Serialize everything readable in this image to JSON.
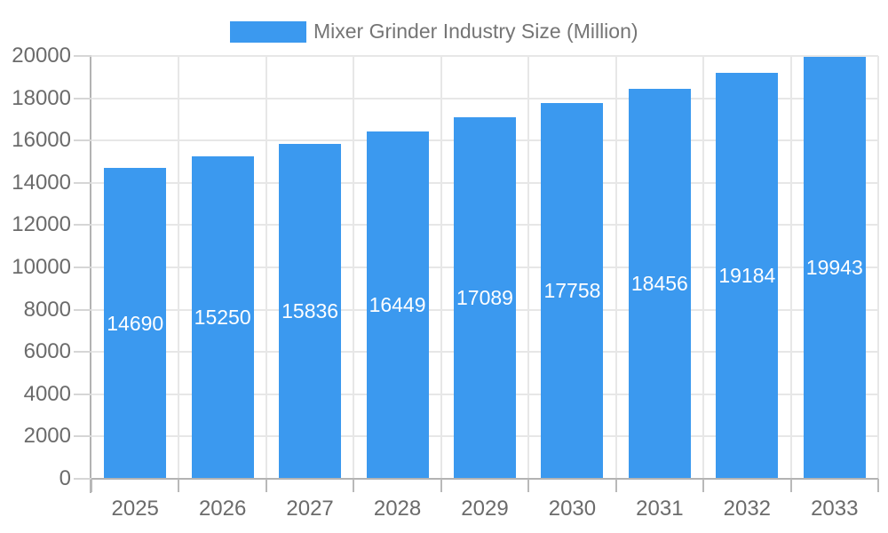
{
  "chart_data": {
    "type": "bar",
    "title": "Mixer Grinder Industry Size (Million)",
    "legend_position": "top",
    "categories": [
      "2025",
      "2026",
      "2027",
      "2028",
      "2029",
      "2030",
      "2031",
      "2032",
      "2033"
    ],
    "values": [
      14690,
      15250,
      15836,
      16449,
      17089,
      17758,
      18456,
      19184,
      19943
    ],
    "series": [
      {
        "name": "Mixer Grinder Industry Size (Million)",
        "values": [
          14690,
          15250,
          15836,
          16449,
          17089,
          17758,
          18456,
          19184,
          19943
        ]
      }
    ],
    "xlabel": "",
    "ylabel": "",
    "ylim": [
      0,
      20000
    ],
    "ytick_step": 2000,
    "grid": true,
    "bar_color": "#3b99ef",
    "bar_label_color": "#ffffff",
    "axis_label_color": "#6b6b6b",
    "legend_text_color": "#757575",
    "gridline_color": "#e7e7e7",
    "axis_line_color": "#b3b3b3"
  }
}
